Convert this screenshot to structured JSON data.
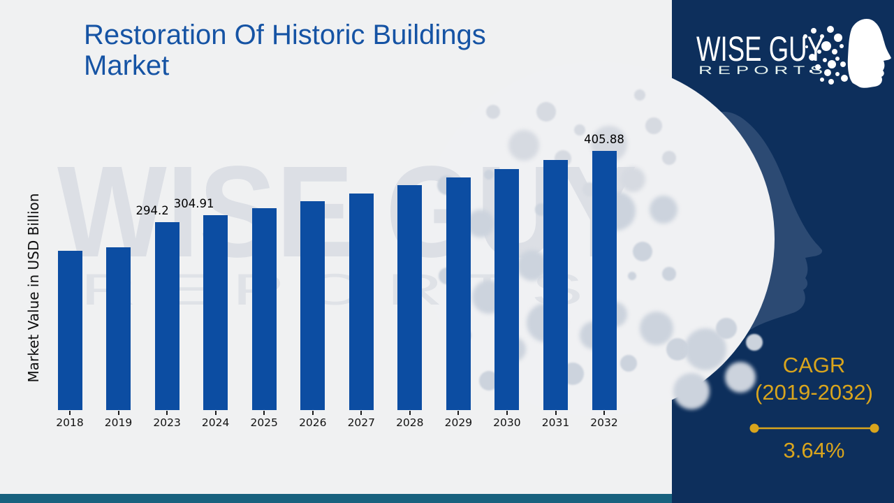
{
  "header": {
    "title": "Restoration Of Historic Buildings Market",
    "title_line1": "Restoration Of Historic Buildings",
    "title_line2": "Market"
  },
  "logo": {
    "brand": "WISE GUY",
    "sub": "R E P O R T S"
  },
  "watermark": {
    "brand": "WISE GUY",
    "sub": "R E P O R T S"
  },
  "chart_data": {
    "type": "bar",
    "title": "Restoration Of Historic Buildings Market",
    "xlabel": "",
    "ylabel": "Market Value in USD Billion",
    "categories": [
      "2018",
      "2019",
      "2023",
      "2024",
      "2025",
      "2026",
      "2027",
      "2028",
      "2029",
      "2030",
      "2031",
      "2032"
    ],
    "values": [
      249.9,
      255.0,
      294.2,
      304.91,
      316.0,
      327.5,
      339.4,
      351.8,
      364.6,
      377.9,
      391.6,
      405.88
    ],
    "bar_labels": [
      "",
      "",
      "294.2",
      "304.91",
      "",
      "",
      "",
      "",
      "",
      "",
      "",
      "405.88"
    ],
    "bar_color": "#0c4da2",
    "ylim": [
      0,
      425
    ],
    "grid": false,
    "legend": null
  },
  "cagr": {
    "heading": "CAGR",
    "range": "(2019-2032)",
    "value": "3.64%"
  },
  "colors": {
    "bar": "#0c4da2",
    "navy_panel": "#0d2f5c",
    "face_silhouette": "#2c4a73",
    "gold": "#d9a51d",
    "teal_strip": "#18617e",
    "title_blue": "#1553a4"
  }
}
